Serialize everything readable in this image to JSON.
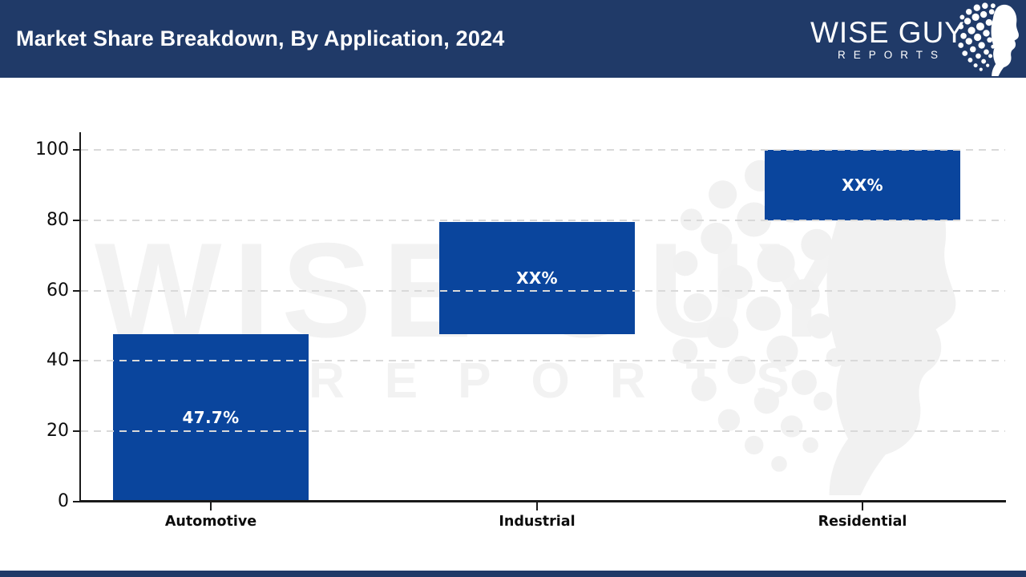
{
  "header": {
    "title": "Market Share Breakdown, By Application, 2024",
    "logo": {
      "line1": "WISE GUY",
      "line2": "REPORTS"
    }
  },
  "watermark": {
    "line1": "WISE GUY",
    "line2": "REPORTS"
  },
  "chart_data": {
    "type": "bar",
    "subtype": "floating-waterfall",
    "title": "Market Share Breakdown, By Application, 2024",
    "categories": [
      "Automotive",
      "Industrial",
      "Residential"
    ],
    "bars": [
      {
        "category": "Automotive",
        "start": 0,
        "end": 47.7,
        "label": "47.7%"
      },
      {
        "category": "Industrial",
        "start": 47.7,
        "end": 79.5,
        "label": "XX%"
      },
      {
        "category": "Residential",
        "start": 80,
        "end": 100,
        "label": "XX%"
      }
    ],
    "ylim": [
      0,
      100
    ],
    "yticks": [
      0,
      20,
      40,
      60,
      80,
      100
    ],
    "xlabel": "",
    "ylabel": "",
    "grid": "horizontal-dashed",
    "legend": "none",
    "bar_color": "#0a459d",
    "bar_label_color": "#ffffff"
  },
  "colors": {
    "header_bg": "#203a68",
    "footer_bg": "#203a68",
    "bar": "#0a459d",
    "axis": "#1a1a1a",
    "grid": "#d9d9d9",
    "watermark": "#f2f2f2",
    "background": "#ffffff"
  }
}
